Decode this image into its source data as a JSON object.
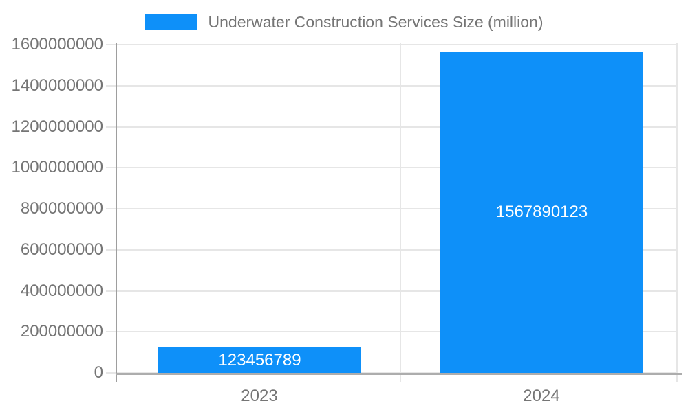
{
  "legend": {
    "swatch_color": "#0e90f9",
    "label": "Underwater Construction Services Size (million)"
  },
  "chart_data": {
    "type": "bar",
    "title": "Underwater Construction Services Size (million)",
    "categories": [
      "2023",
      "2024"
    ],
    "values": [
      123456789,
      1567890123
    ],
    "value_labels": [
      "123456789",
      "1567890123"
    ],
    "series": [
      {
        "name": "Underwater Construction Services Size (million)",
        "values": [
          123456789,
          1567890123
        ]
      }
    ],
    "xlabel": "",
    "ylabel": "",
    "ylim": [
      0,
      1600000000
    ],
    "ytick_interval": 200000000,
    "ytick_labels": [
      "1600000000",
      "1400000000",
      "1200000000",
      "1000000000",
      "800000000",
      "600000000",
      "400000000",
      "200000000",
      "0"
    ],
    "grid": true,
    "legend_position": "top-center",
    "bar_color": "#0e90f9"
  },
  "colors": {
    "bar": "#0e90f9",
    "grid": "#e6e6e6",
    "axis_y": "#9e9e9e",
    "axis_x": "#adadad",
    "text": "#757575",
    "value_label": "#ffffff"
  }
}
